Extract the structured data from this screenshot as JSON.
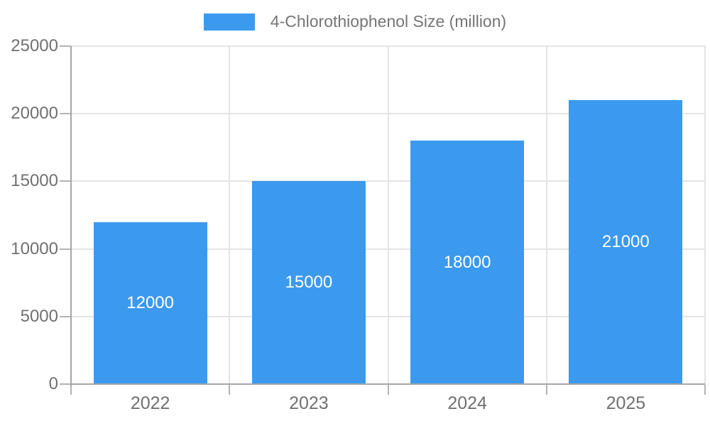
{
  "legend": {
    "label": "4-Chlorothiophenol Size (million)"
  },
  "chart_data": {
    "type": "bar",
    "title": "",
    "categories": [
      "2022",
      "2023",
      "2024",
      "2025"
    ],
    "values": [
      12000,
      15000,
      18000,
      21000
    ],
    "series_name": "4-Chlorothiophenol Size (million)",
    "value_labels": [
      "12000",
      "15000",
      "18000",
      "21000"
    ],
    "ylim": [
      0,
      25000
    ],
    "yticks": [
      0,
      5000,
      10000,
      15000,
      20000,
      25000
    ],
    "ytick_labels": [
      "0",
      "5000",
      "10000",
      "15000",
      "20000",
      "25000"
    ],
    "xlabel": "",
    "ylabel": "",
    "grid": true,
    "legend_position": "top",
    "value_label_position": "inside-center"
  },
  "colors": {
    "bar": "#3b99ee",
    "value_label": "#ffffff",
    "axis": "#a6a6a6",
    "tick": "#b3b3b3",
    "grid": "#e4e4e4",
    "text": "#707070",
    "legend_text": "#757575",
    "background": "#ffffff"
  }
}
